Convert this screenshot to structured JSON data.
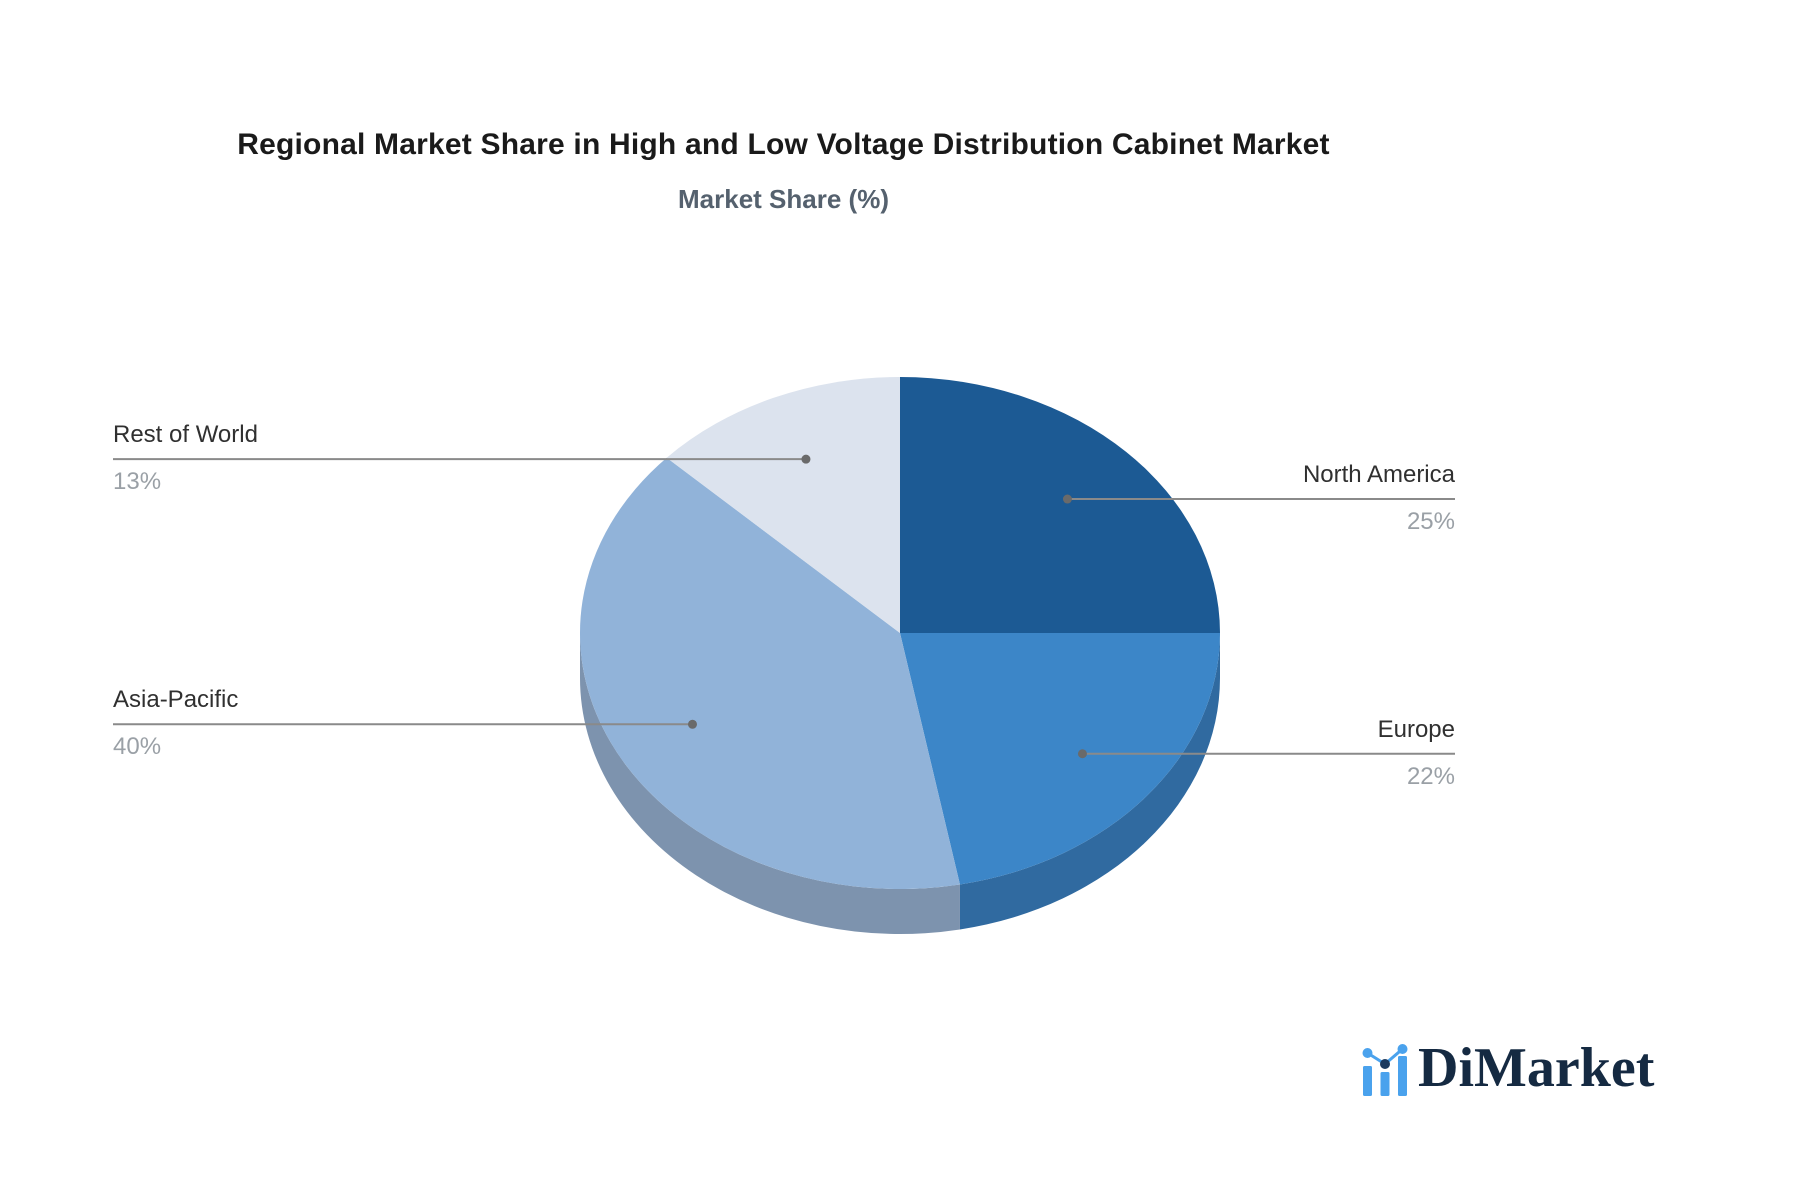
{
  "title": "Regional Market Share in High and Low Voltage Distribution Cabinet Market",
  "subtitle": "Market Share (%)",
  "logo": {
    "text": "DiMarket",
    "icon": "bar-line-chart-icon"
  },
  "chart_data": {
    "type": "pie",
    "title": "Regional Market Share in High and Low Voltage Distribution Cabinet Market",
    "subtitle": "Market Share (%)",
    "unit": "%",
    "effect_3d": true,
    "direction": "clockwise",
    "start_angle_deg": 0,
    "legend_position": "callout-labels",
    "slices": [
      {
        "name": "North America",
        "value": 25,
        "pct_label": "25%",
        "color": "#1c5a94",
        "side_color": "#27517d",
        "label_side": "right"
      },
      {
        "name": "Europe",
        "value": 22,
        "pct_label": "22%",
        "color": "#3c86c8",
        "side_color": "#306aa0",
        "label_side": "right"
      },
      {
        "name": "Asia-Pacific",
        "value": 40,
        "pct_label": "40%",
        "color": "#91b3d9",
        "side_color": "#7d93ae",
        "label_side": "left"
      },
      {
        "name": "Rest of World",
        "value": 13,
        "pct_label": "13%",
        "color": "#dce3ee",
        "side_color": "#b4c0d2",
        "label_side": "left"
      }
    ],
    "label_color": "#303030",
    "pct_color": "#9aa0a6",
    "leader_color": "#8a8a8a"
  }
}
